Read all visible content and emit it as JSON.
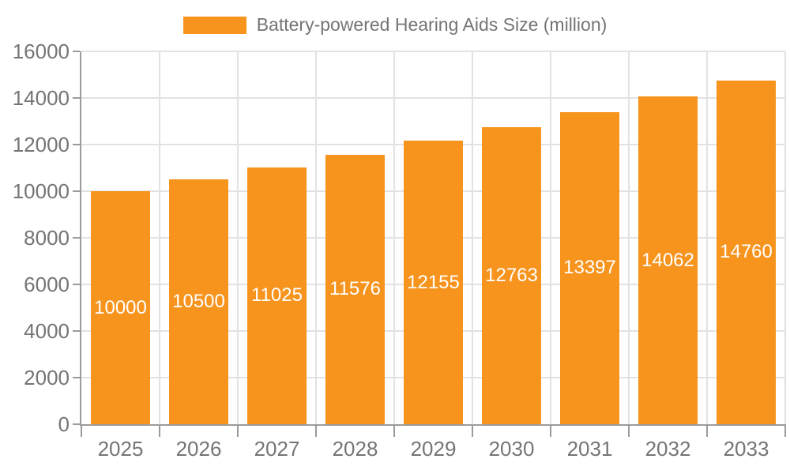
{
  "chart_data": {
    "type": "bar",
    "title": "Battery-powered Hearing Aids Size (million)",
    "legend": {
      "position": "top",
      "label": "Battery-powered Hearing Aids Size (million)"
    },
    "categories": [
      "2025",
      "2026",
      "2027",
      "2028",
      "2029",
      "2030",
      "2031",
      "2032",
      "2033"
    ],
    "series": [
      {
        "name": "Battery-powered Hearing Aids Size (million)",
        "values": [
          10000,
          10500,
          11025,
          11576,
          12155,
          12763,
          13397,
          14062,
          14760
        ]
      }
    ],
    "xlabel": "",
    "ylabel": "",
    "ylim": [
      0,
      16000
    ],
    "yticks": [
      0,
      2000,
      4000,
      6000,
      8000,
      10000,
      12000,
      14000,
      16000
    ],
    "grid": true,
    "value_labels": "inside-center",
    "bar_width_ratio": 0.75,
    "colors": {
      "bar": "#F7941E",
      "value_label": "#FFFFFF",
      "axis_text": "#757575",
      "grid_line": "#E2E2E2",
      "axis_line": "#9B9B9B",
      "background": "#FFFFFF"
    }
  }
}
